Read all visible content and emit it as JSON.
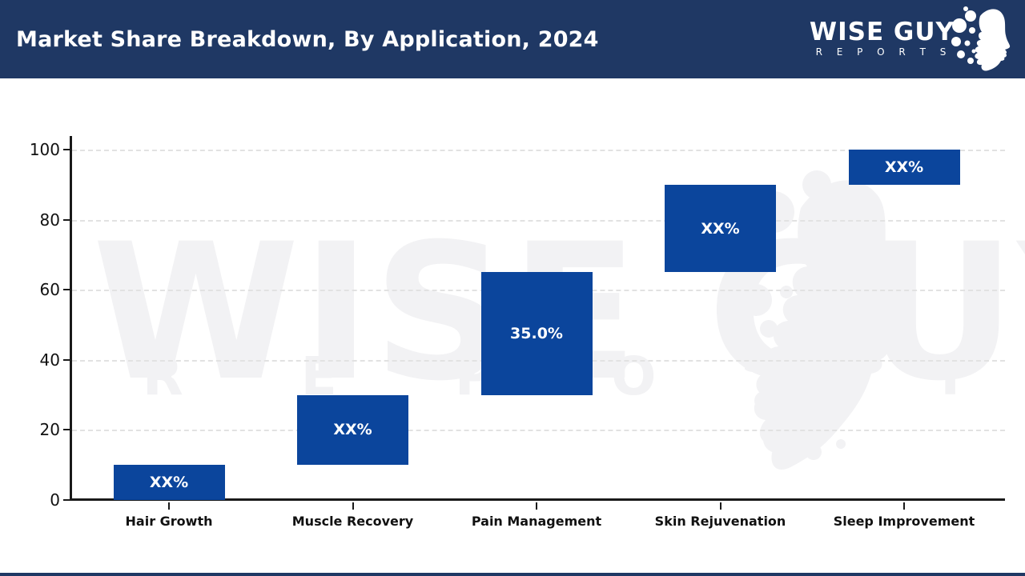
{
  "header": {
    "title": "Market Share Breakdown, By Application, 2024",
    "bg_color": "#1f3864",
    "logo": {
      "line1": "WISE GUY",
      "line2": "R E P O R T S",
      "face_icon": "dotted-head-profile-icon"
    }
  },
  "watermark": {
    "line1": "WISE GUY",
    "line2": "R E P O R T S",
    "face_icon": "dotted-head-profile-icon"
  },
  "chart_data": {
    "type": "bar",
    "subtype": "waterfall-floating-segments",
    "title": "Market Share Breakdown, By Application, 2024",
    "categories": [
      "Hair Growth",
      "Muscle Recovery",
      "Pain Management",
      "Skin Rejuvenation",
      "Sleep Improvement"
    ],
    "segments": [
      {
        "category": "Hair Growth",
        "start": 0,
        "end": 10,
        "label": "XX%"
      },
      {
        "category": "Muscle Recovery",
        "start": 10,
        "end": 30,
        "label": "XX%"
      },
      {
        "category": "Pain Management",
        "start": 30,
        "end": 65,
        "label": "35.0%"
      },
      {
        "category": "Skin Rejuvenation",
        "start": 65,
        "end": 90,
        "label": "XX%"
      },
      {
        "category": "Sleep Improvement",
        "start": 90,
        "end": 100,
        "label": "XX%"
      }
    ],
    "xlabel": "",
    "ylabel": "",
    "y_ticks": [
      0,
      20,
      40,
      60,
      80,
      100
    ],
    "ylim": [
      0,
      104
    ],
    "grid": "horizontal-dashed",
    "legend": "none",
    "bar_color": "#0b459c",
    "grid_color": "#e2e2e2",
    "axis_color": "#1a1a1a",
    "label_color": "#ffffff"
  }
}
